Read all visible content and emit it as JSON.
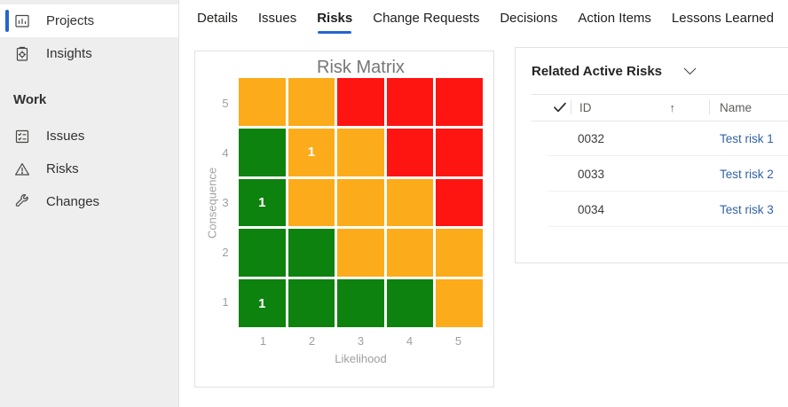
{
  "sidebar": {
    "items": [
      {
        "label": "Projects",
        "icon": "projects-icon",
        "selected": true
      },
      {
        "label": "Insights",
        "icon": "insights-icon",
        "selected": false
      }
    ],
    "section": "Work",
    "work_items": [
      {
        "label": "Issues",
        "icon": "issues-checklist-icon"
      },
      {
        "label": "Risks",
        "icon": "warning-triangle-icon"
      },
      {
        "label": "Changes",
        "icon": "wrench-icon"
      }
    ]
  },
  "tabs": [
    {
      "label": "Details"
    },
    {
      "label": "Issues"
    },
    {
      "label": "Risks"
    },
    {
      "label": "Change Requests"
    },
    {
      "label": "Decisions"
    },
    {
      "label": "Action Items"
    },
    {
      "label": "Lessons Learned"
    }
  ],
  "active_tab": "Risks",
  "chart_data": {
    "type": "heatmap",
    "title": "Risk Matrix",
    "xlabel": "Likelihood",
    "ylabel": "Consequence",
    "x_ticks": [
      "1",
      "2",
      "3",
      "4",
      "5"
    ],
    "y_ticks": [
      "5",
      "4",
      "3",
      "2",
      "1"
    ],
    "cell_colors": {
      "green": "#0e820e",
      "orange": "#fcac1a",
      "red": "#fe1411"
    },
    "rows": [
      {
        "consequence": "5",
        "cells": [
          {
            "level": "orange",
            "count": ""
          },
          {
            "level": "orange",
            "count": ""
          },
          {
            "level": "red",
            "count": ""
          },
          {
            "level": "red",
            "count": ""
          },
          {
            "level": "red",
            "count": ""
          }
        ]
      },
      {
        "consequence": "4",
        "cells": [
          {
            "level": "green",
            "count": ""
          },
          {
            "level": "orange",
            "count": "1"
          },
          {
            "level": "orange",
            "count": ""
          },
          {
            "level": "red",
            "count": ""
          },
          {
            "level": "red",
            "count": ""
          }
        ]
      },
      {
        "consequence": "3",
        "cells": [
          {
            "level": "green",
            "count": "1"
          },
          {
            "level": "orange",
            "count": ""
          },
          {
            "level": "orange",
            "count": ""
          },
          {
            "level": "orange",
            "count": ""
          },
          {
            "level": "red",
            "count": ""
          }
        ]
      },
      {
        "consequence": "2",
        "cells": [
          {
            "level": "green",
            "count": ""
          },
          {
            "level": "green",
            "count": ""
          },
          {
            "level": "orange",
            "count": ""
          },
          {
            "level": "orange",
            "count": ""
          },
          {
            "level": "orange",
            "count": ""
          }
        ]
      },
      {
        "consequence": "1",
        "cells": [
          {
            "level": "green",
            "count": "1"
          },
          {
            "level": "green",
            "count": ""
          },
          {
            "level": "green",
            "count": ""
          },
          {
            "level": "green",
            "count": ""
          },
          {
            "level": "orange",
            "count": ""
          }
        ]
      }
    ]
  },
  "related_risks": {
    "title": "Related Active Risks",
    "columns": {
      "id": "ID",
      "name": "Name"
    },
    "sort_ascending_icon": "↑",
    "rows": [
      {
        "id": "0032",
        "name": "Test risk 1"
      },
      {
        "id": "0033",
        "name": "Test risk 2"
      },
      {
        "id": "0034",
        "name": "Test risk 3"
      }
    ]
  },
  "colors": {
    "accent": "#2564cf",
    "link": "#3162a5",
    "sidebar_bg": "#eeeeee",
    "green": "#0e820e",
    "orange": "#fcac1a",
    "red": "#fe1411"
  }
}
